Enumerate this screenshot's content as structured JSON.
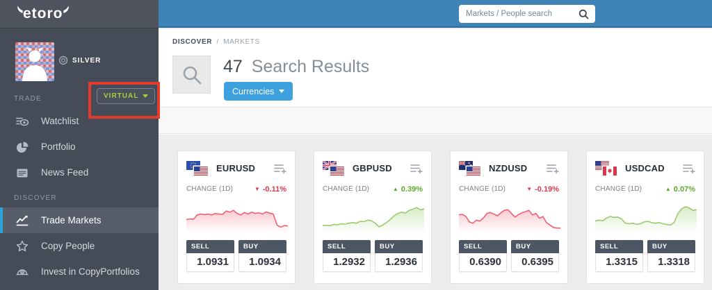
{
  "brand": {
    "logo_text": "etoro"
  },
  "topbar": {
    "search_placeholder": "Markets / People search"
  },
  "sidebar": {
    "badge_label": "SILVER",
    "trade_section_label": "TRADE",
    "discover_section_label": "DISCOVER",
    "mode_button_label": "VIRTUAL",
    "items": [
      {
        "label": "Watchlist"
      },
      {
        "label": "Portfolio"
      },
      {
        "label": "News Feed"
      },
      {
        "label": "Trade Markets",
        "active": true
      },
      {
        "label": "Copy People"
      },
      {
        "label": "Invest in CopyPortfolios"
      }
    ]
  },
  "breadcrumb": {
    "section": "DISCOVER",
    "separator": "/",
    "page": "MARKETS"
  },
  "results_header": {
    "count": "47",
    "label": "Search Results",
    "filter_label": "Currencies"
  },
  "card_labels": {
    "change": "CHANGE (1D)",
    "sell": "SELL",
    "buy": "BUY"
  },
  "cards": [
    {
      "symbol": "EURUSD",
      "flags": [
        "eu",
        "us"
      ],
      "direction": "down",
      "change": "-0.11%",
      "sell": "1.0931",
      "buy": "1.0934",
      "spark": [
        40,
        42,
        41,
        55,
        58,
        56,
        58,
        55,
        60,
        58,
        57,
        68,
        64,
        70,
        60,
        55,
        63,
        58,
        64,
        60,
        62,
        58,
        65,
        61,
        58,
        22,
        15,
        20,
        19
      ]
    },
    {
      "symbol": "GBPUSD",
      "flags": [
        "gb",
        "us"
      ],
      "direction": "up",
      "change": "0.39%",
      "sell": "1.2932",
      "buy": "1.2936",
      "spark": [
        20,
        21,
        20,
        24,
        23,
        26,
        25,
        28,
        30,
        28,
        34,
        33,
        38,
        36,
        28,
        16,
        22,
        30,
        40,
        52,
        60,
        64,
        61,
        70,
        74,
        79,
        72,
        75
      ]
    },
    {
      "symbol": "NZDUSD",
      "flags": [
        "nz",
        "us"
      ],
      "direction": "down",
      "change": "-0.19%",
      "sell": "0.6390",
      "buy": "0.6395",
      "spark": [
        55,
        57,
        50,
        32,
        28,
        38,
        35,
        45,
        60,
        63,
        58,
        52,
        62,
        70,
        72,
        60,
        48,
        56,
        62,
        66,
        70,
        55,
        60,
        44,
        50,
        30,
        22,
        14,
        12,
        12
      ]
    },
    {
      "symbol": "USDCAD",
      "flags": [
        "us",
        "ca"
      ],
      "direction": "up",
      "change": "0.07%",
      "sell": "1.3315",
      "buy": "1.3318",
      "spark": [
        35,
        38,
        36,
        45,
        50,
        47,
        48,
        42,
        28,
        26,
        28,
        24,
        26,
        32,
        34,
        30,
        28,
        30,
        26,
        24,
        22,
        30,
        60,
        75,
        82,
        78,
        70,
        72
      ]
    }
  ],
  "colors": {
    "up_green": "#5aad2b",
    "down_red": "#e0394e",
    "accent_blue": "#3da0df",
    "topbar_blue": "#3d83b6",
    "sidebar_dark": "#464b58",
    "virtual_green": "#a8ce3d",
    "annotation_red": "#e33b2d"
  }
}
